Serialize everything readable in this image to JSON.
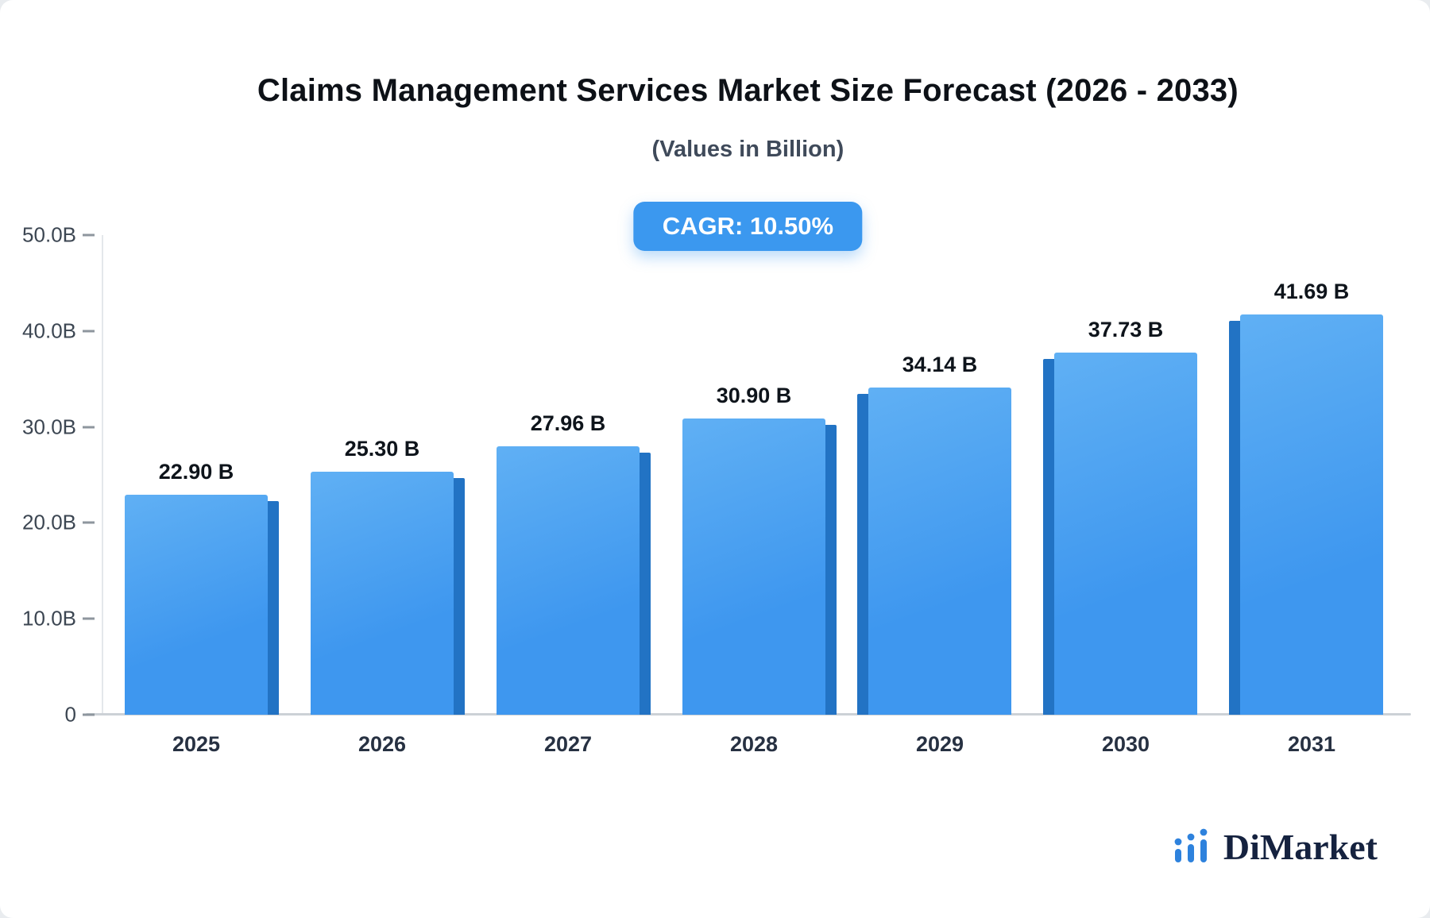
{
  "title": "Claims Management Services Market Size Forecast (2026 - 2033)",
  "subtitle": "(Values in Billion)",
  "badge": {
    "text": "CAGR: 10.50%",
    "color": "#3b98ef"
  },
  "brand": {
    "name": "DiMarket",
    "icon": "bar-chart-logo-icon",
    "text_color": "#15223f",
    "icon_color": "#2e82dd"
  },
  "chart_data": {
    "type": "bar",
    "title": "Claims Management Services Market Size Forecast (2026 - 2033)",
    "subtitle": "(Values in Billion)",
    "annotation": "CAGR: 10.50%",
    "categories": [
      "2025",
      "2026",
      "2027",
      "2028",
      "2029",
      "2030",
      "2031"
    ],
    "values": [
      22.9,
      25.3,
      27.96,
      30.9,
      34.14,
      37.73,
      41.69
    ],
    "value_labels": [
      "22.90 B",
      "25.30 B",
      "27.96 B",
      "30.90 B",
      "34.14 B",
      "37.73 B",
      "41.69 B"
    ],
    "xlabel": "",
    "ylabel": "",
    "ylim": [
      0,
      50
    ],
    "ytick_values": [
      50,
      40,
      30,
      20,
      10,
      0
    ],
    "ytick_labels": [
      "50.0B",
      "40.0B",
      "30.0B",
      "20.0B",
      "10.0B",
      "0"
    ],
    "grid": false,
    "legend": false,
    "bar_color": "#3e97ef",
    "bar_side_color": "#2273c4"
  }
}
